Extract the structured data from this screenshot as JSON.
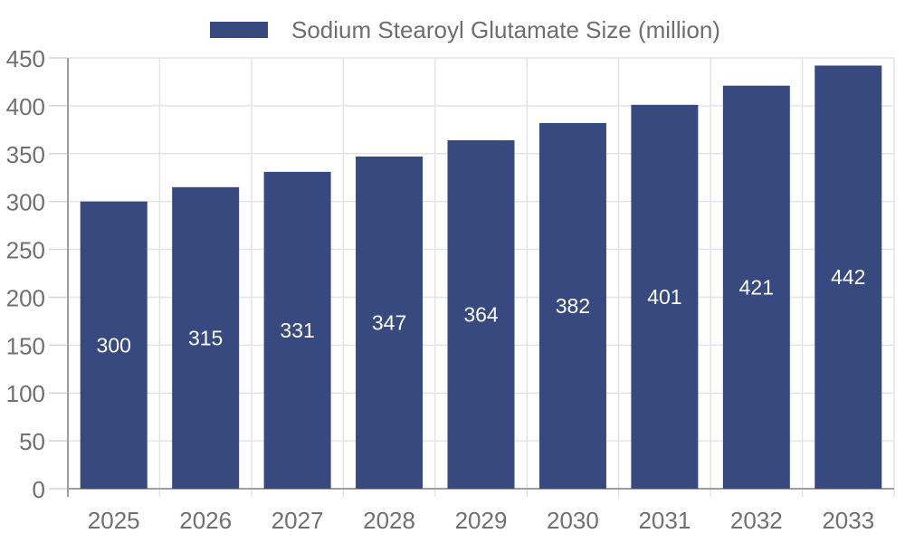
{
  "chart_data": {
    "type": "bar",
    "title": "Sodium Stearoyl Glutamate Size (million)",
    "categories": [
      "2025",
      "2026",
      "2027",
      "2028",
      "2029",
      "2030",
      "2031",
      "2032",
      "2033"
    ],
    "series": [
      {
        "name": "Sodium Stearoyl Glutamate Size (million)",
        "values": [
          300,
          315,
          331,
          347,
          364,
          382,
          401,
          421,
          442
        ]
      }
    ],
    "values": [
      300,
      315,
      331,
      347,
      364,
      382,
      401,
      421,
      442
    ],
    "value_labels": [
      "300",
      "315",
      "331",
      "347",
      "364",
      "382",
      "401",
      "421",
      "442"
    ],
    "xlabel": "",
    "ylabel": "",
    "ylim": [
      0,
      450
    ],
    "ytick_step": 50,
    "yticks": [
      "0",
      "50",
      "100",
      "150",
      "200",
      "250",
      "300",
      "350",
      "400",
      "450"
    ],
    "grid": true,
    "legend_position": "top-center",
    "colors": {
      "bar": "#37497f",
      "value_label": "#ffffff",
      "axis_text": "#707070",
      "legend_text": "#6e6e6e",
      "grid_line": "#e4e4e4",
      "tick_line": "#d4d4d4",
      "axis_line": "#9e9e9e",
      "background": "#ffffff"
    }
  }
}
